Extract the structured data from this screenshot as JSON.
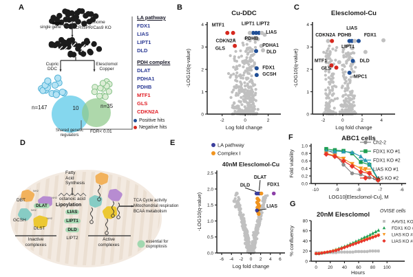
{
  "labels": {
    "A": "A",
    "B": "B",
    "C": "C",
    "D": "D",
    "E": "E",
    "F": "F",
    "G": "G"
  },
  "panelA": {
    "single_gene": "single gene",
    "crispr": [
      "Whole genome",
      "CRISPR/Cas9 KO"
    ],
    "arm_left": [
      "Cupric",
      "DDC"
    ],
    "arm_right": [
      "Elesclomol",
      "Copper"
    ],
    "venn_left": "n=147",
    "venn_overlap": "10",
    "venn_right": "n=35",
    "venn_caption": [
      "Shared genetic",
      "regulators"
    ],
    "fdr": "FDR< 0.01",
    "list": {
      "la_header": "LA pathway",
      "la": [
        "FDX1",
        "LIAS",
        "LIPT1",
        "DLD"
      ],
      "pdh_header": "PDH complex",
      "pdh_pos": [
        "DLAT",
        "PDHA1",
        "PDHB"
      ],
      "pdh_neg": [
        "MTF1",
        "GLS",
        "CDKN2A"
      ]
    },
    "hits": {
      "positive": "Positive hits",
      "negative": "Negative hits"
    }
  },
  "panelD": {
    "blobs_inactive": [
      "DBT",
      "DLAT",
      "GCSH",
      "DLST"
    ],
    "tag": "NH2",
    "inactive_caption": [
      "Inactive",
      "complexes"
    ],
    "fatty": [
      "Fatty",
      "Acid",
      "Synthesis"
    ],
    "octanoic": "octanoic acid",
    "lipoylation": "Lipoylation",
    "lip_genes": [
      "LIAS",
      "LIPT1",
      "DLD"
    ],
    "lip_other": "LIPT2",
    "active_caption": [
      "Active",
      "complexes"
    ],
    "outcomes": [
      "TCA Cycle activity",
      "Mitochondrial respiration",
      "BCAA metabolism"
    ],
    "essential": [
      "essential for",
      "cuproptosis"
    ]
  },
  "colors": {
    "pos": "#1f4e96",
    "neg": "#d6281e",
    "bg": "#c0c0c0",
    "la": "#3b3f9c",
    "cx1": "#f0941f",
    "fdx1_dot": "#8c3fa8",
    "gray": "#8e8e8e",
    "green": "#1d9e50",
    "teal": "#2a9ab5",
    "orange": "#f7941d",
    "red": "#e8342a",
    "aavs": "#bdbdbd"
  },
  "chart_data": [
    {
      "id": "cuddc",
      "type": "scatter",
      "title": "Cu-DDC",
      "xlabel": "Log fold change",
      "ylabel": "-LOG10(q-value)",
      "xlim": [
        -3.3,
        3.1
      ],
      "xticks": [
        -2,
        0,
        2
      ],
      "ylim": [
        0,
        4.12
      ],
      "yticks": [
        0,
        1,
        2,
        3,
        4
      ],
      "bg": {
        "seed": 7,
        "n": 360,
        "pow": 2.1,
        "ymax": 3.45,
        "lobes": [
          {
            "x": 0.45,
            "w": 0.42,
            "p": 0.62
          },
          {
            "x": -0.55,
            "w": 0.72,
            "p": 0.38
          }
        ]
      },
      "points": [
        {
          "x": -1.55,
          "y": 3.63,
          "c": "neg"
        },
        {
          "x": -1.05,
          "y": 3.63,
          "c": "neg"
        },
        {
          "x": -0.9,
          "y": 3.05,
          "c": "neg"
        },
        {
          "x": 0.7,
          "y": 3.63,
          "c": "pos"
        },
        {
          "x": 0.95,
          "y": 3.63,
          "c": "pos"
        },
        {
          "x": 1.2,
          "y": 3.63,
          "c": "pos"
        },
        {
          "x": 1.45,
          "y": 3.63,
          "c": "bg"
        },
        {
          "x": 0.4,
          "y": 3.63,
          "c": "bg"
        },
        {
          "x": 1.7,
          "y": 3.55,
          "c": "bg"
        },
        {
          "x": 0.85,
          "y": 3.4,
          "c": "bg"
        },
        {
          "x": 1.1,
          "y": 3.35,
          "c": "bg"
        },
        {
          "x": 1.4,
          "y": 3.05,
          "c": "bg"
        },
        {
          "x": 0.95,
          "y": 2.82,
          "c": "pos"
        },
        {
          "x": 1.55,
          "y": 2.85,
          "c": "bg"
        },
        {
          "x": 1.0,
          "y": 2.05,
          "c": "pos"
        },
        {
          "x": 1.0,
          "y": 1.75,
          "c": "pos"
        }
      ],
      "labels": [
        {
          "t": "MTF1",
          "x": -2.9,
          "y": 3.92
        },
        {
          "t": "CDKN2A",
          "x": -2.55,
          "y": 3.22
        },
        {
          "t": "GLS",
          "x": -2.6,
          "y": 2.88
        },
        {
          "t": "LIPT1",
          "x": 0.25,
          "y": 3.98,
          "a": "middle"
        },
        {
          "t": "LIPT2",
          "x": 1.55,
          "y": 3.98,
          "a": "middle"
        },
        {
          "t": "LIAS",
          "x": 1.8,
          "y": 3.6
        },
        {
          "t": "PDHB",
          "x": 0.55,
          "y": 3.32,
          "a": "middle"
        },
        {
          "t": "PDHA1",
          "x": 1.5,
          "y": 3.02
        },
        {
          "t": "DLD",
          "x": 1.85,
          "y": 2.72
        },
        {
          "t": "FDX1",
          "x": 1.5,
          "y": 2.02
        },
        {
          "t": "GCSH",
          "x": 1.5,
          "y": 1.72
        }
      ]
    },
    {
      "id": "elescu",
      "type": "scatter",
      "title": "Elesclomol-Cu",
      "xlabel": "Log fold change",
      "ylabel": "-LOG10(q-value)",
      "xlim": [
        -3.1,
        5.4
      ],
      "xticks": [
        -2,
        0,
        2,
        4
      ],
      "ylim": [
        0,
        4.12
      ],
      "yticks": [
        0,
        1,
        2,
        3,
        4
      ],
      "bg": {
        "seed": 11,
        "n": 320,
        "pow": 2.3,
        "ymax": 3.1,
        "lobes": [
          {
            "x": -1.3,
            "w": 0.55,
            "p": 0.42
          },
          {
            "x": 0.6,
            "w": 0.6,
            "p": 0.58
          }
        ]
      },
      "points": [
        {
          "x": -1.5,
          "y": 3.27,
          "c": "bg"
        },
        {
          "x": -1.1,
          "y": 3.27,
          "c": "neg"
        },
        {
          "x": 0.7,
          "y": 3.27,
          "c": "pos"
        },
        {
          "x": 0.95,
          "y": 3.27,
          "c": "pos"
        },
        {
          "x": 1.25,
          "y": 3.27,
          "c": "bg"
        },
        {
          "x": 1.65,
          "y": 3.27,
          "c": "pos"
        },
        {
          "x": 4.2,
          "y": 3.3,
          "c": "bg"
        },
        {
          "x": 1.0,
          "y": 2.95,
          "c": "bg"
        },
        {
          "x": 2.35,
          "y": 2.78,
          "c": "bg"
        },
        {
          "x": -1.45,
          "y": 2.62,
          "c": "bg"
        },
        {
          "x": 1.05,
          "y": 2.38,
          "c": "pos"
        },
        {
          "x": -0.35,
          "y": 2.32,
          "c": "bg"
        },
        {
          "x": -1.15,
          "y": 2.18,
          "c": "neg"
        },
        {
          "x": -0.65,
          "y": 2.08,
          "c": "neg"
        },
        {
          "x": 0.7,
          "y": 1.85,
          "c": "pos"
        }
      ],
      "labels": [
        {
          "t": "CDKN2A",
          "x": -2.8,
          "y": 3.48
        },
        {
          "t": "LIAS",
          "x": 0.95,
          "y": 3.78,
          "a": "middle"
        },
        {
          "t": "PDHB",
          "x": 0.2,
          "y": 3.48,
          "a": "middle"
        },
        {
          "t": "FDX1",
          "x": 2.2,
          "y": 3.48
        },
        {
          "t": "LIPT1",
          "x": 0.55,
          "y": 2.95,
          "a": "middle"
        },
        {
          "t": "MTF1",
          "x": -2.9,
          "y": 2.32
        },
        {
          "t": "GLS",
          "x": -2.2,
          "y": 1.98
        },
        {
          "t": "DLD",
          "x": 1.75,
          "y": 2.32
        },
        {
          "t": "MPC1",
          "x": 1.15,
          "y": 1.62
        }
      ]
    },
    {
      "id": "elescu40",
      "type": "scatter",
      "title": "40nM Elesclomol-Cu",
      "xlabel": "Log fold change",
      "ylabel": "-LOG10(q-value)",
      "xlim": [
        -7,
        7
      ],
      "xticks": [
        -6,
        -4,
        -2,
        0,
        2,
        4,
        6
      ],
      "ylim": [
        0,
        2.58
      ],
      "yticks": [
        0,
        0.5,
        1,
        1.5,
        2,
        2.5
      ],
      "yticklabels": [
        "0.0",
        "0.5",
        "1.0",
        "1.5",
        "2.0",
        "2.5"
      ],
      "legend": [
        {
          "t": "LA pathway",
          "c": "la"
        },
        {
          "t": "Complex I",
          "c": "cx1"
        }
      ],
      "bg": {
        "seed": 5,
        "n": 400,
        "pow": 1.7,
        "ymax": 1.82,
        "v": {
          "base": 0.12,
          "slope": 1.55,
          "sig": 0.4
        }
      },
      "points": [
        {
          "x": 1.15,
          "y": 1.86,
          "c": "la"
        },
        {
          "x": 1.45,
          "y": 1.86,
          "c": "la"
        },
        {
          "x": 1.75,
          "y": 1.86,
          "c": "la"
        },
        {
          "x": 2.15,
          "y": 1.86,
          "c": "cx1"
        },
        {
          "x": 4.7,
          "y": 1.86,
          "c": "fdx1_dot"
        },
        {
          "x": 1.35,
          "y": 1.7,
          "c": "cx1"
        },
        {
          "x": 1.6,
          "y": 1.65,
          "c": "cx1"
        },
        {
          "x": 1.3,
          "y": 1.58,
          "c": "cx1"
        },
        {
          "x": 1.55,
          "y": 1.52,
          "c": "cx1"
        },
        {
          "x": 1.7,
          "y": 1.47,
          "c": "cx1"
        },
        {
          "x": 1.35,
          "y": 1.42,
          "c": "cx1"
        },
        {
          "x": 1.55,
          "y": 1.36,
          "c": "cx1"
        },
        {
          "x": 1.45,
          "y": 1.28,
          "c": "cx1"
        },
        {
          "x": 1.6,
          "y": 1.22,
          "c": "cx1"
        },
        {
          "x": 1.25,
          "y": 1.33,
          "c": "la"
        },
        {
          "x": -2.9,
          "y": 1.86,
          "c": "bg"
        },
        {
          "x": -3.4,
          "y": 1.62,
          "c": "bg"
        },
        {
          "x": -2.6,
          "y": 1.55,
          "c": "bg"
        },
        {
          "x": -3.1,
          "y": 1.45,
          "c": "bg"
        },
        {
          "x": -2.2,
          "y": 1.38,
          "c": "bg"
        }
      ],
      "labels": [
        {
          "t": "DLD",
          "x": -1.2,
          "y": 2.08,
          "a": "middle",
          "line": [
            1.05,
            1.92
          ]
        },
        {
          "t": "DLAT",
          "x": 1.9,
          "y": 2.32,
          "a": "middle",
          "line": [
            1.7,
            1.95
          ]
        },
        {
          "t": "FDX1",
          "x": 4.6,
          "y": 2.1,
          "a": "middle"
        },
        {
          "t": "LIAS",
          "x": 3.2,
          "y": 1.42,
          "line": [
            1.45,
            1.33
          ]
        }
      ]
    },
    {
      "id": "abc1",
      "type": "line",
      "title": "ABC1 cells",
      "xlabel": "LOG10[Elesclomol-Cu], M",
      "ylabel": "Fold viability",
      "xlim": [
        -10.2,
        -5.8
      ],
      "xticks": [
        -10,
        -9,
        -8,
        -7,
        -6
      ],
      "ylim": [
        0,
        1.06
      ],
      "yticks": [
        0,
        0.2,
        0.4,
        0.6,
        0.8,
        1
      ],
      "yticklabels": [
        "0.0",
        "0.2",
        "0.4",
        "0.6",
        "0.8",
        "1.0"
      ],
      "x": [
        -9.5,
        -9.1,
        -8.7,
        -8.3,
        -7.9,
        -7.5,
        -7.1
      ],
      "series": [
        {
          "name": "Ch2-2",
          "color": "gray",
          "marker": "circle",
          "values": [
            0.9,
            0.79,
            0.5,
            0.27,
            0.24,
            0.16,
            0.1
          ]
        },
        {
          "name": "FDX1 KO #1",
          "color": "green",
          "marker": "square",
          "values": [
            0.92,
            0.89,
            0.87,
            0.8,
            0.57,
            0.5,
            0.1
          ]
        },
        {
          "name": "FDX1 KO #2",
          "color": "teal",
          "marker": "triangle",
          "values": [
            0.87,
            0.86,
            0.85,
            0.83,
            0.72,
            0.52,
            0.13
          ]
        },
        {
          "name": "LIAS KO #1",
          "color": "orange",
          "marker": "triangle-down",
          "values": [
            0.8,
            0.74,
            0.66,
            0.52,
            0.4,
            0.28,
            0.1
          ]
        },
        {
          "name": "LIAS KO #2",
          "color": "red",
          "marker": "diamond",
          "values": [
            0.78,
            0.72,
            0.6,
            0.46,
            0.31,
            0.27,
            0.09
          ]
        }
      ]
    },
    {
      "id": "ovise",
      "type": "line",
      "title": "20nM Elesclomol",
      "legend_header": "OVISE cells",
      "xlabel": "Hours",
      "ylabel": "% confluency",
      "xlim": [
        -7,
        125
      ],
      "xticks": [
        0,
        20,
        40,
        60,
        80,
        100
      ],
      "ylim": [
        0,
        80
      ],
      "yticks": [
        0,
        20,
        40,
        60,
        80
      ],
      "x": [
        0,
        4,
        8,
        12,
        16,
        20,
        24,
        28,
        32,
        36,
        40,
        44,
        48,
        52,
        56,
        60,
        64,
        68,
        72,
        76,
        80,
        84,
        88
      ],
      "series": [
        {
          "name": "AAVS1 KO",
          "color": "aavs",
          "marker": "square",
          "err": true,
          "values": [
            17,
            17,
            17,
            17,
            17,
            17,
            17,
            17,
            18,
            18,
            18,
            18,
            18,
            18,
            19,
            19,
            19,
            19,
            19,
            20,
            20,
            20,
            20
          ]
        },
        {
          "name": "FDX1 KO #2",
          "color": "green",
          "marker": "triangle",
          "err": true,
          "values": [
            15,
            15,
            16,
            17,
            18,
            19,
            21,
            23,
            25,
            27,
            29,
            31,
            34,
            36,
            39,
            41,
            44,
            47,
            49,
            52,
            55,
            58,
            61
          ]
        },
        {
          "name": "LIAS KO #1",
          "color": "orange",
          "marker": "triangle-down",
          "values": [
            15,
            15,
            16,
            17,
            18,
            19,
            20,
            22,
            23,
            25,
            27,
            29,
            31,
            33,
            35,
            38,
            40,
            42,
            44,
            46,
            48,
            50,
            52
          ]
        },
        {
          "name": "LIAS KO #2",
          "color": "red",
          "marker": "diamond",
          "err": true,
          "values": [
            15,
            15,
            16,
            17,
            18,
            19,
            20,
            21,
            23,
            25,
            27,
            29,
            31,
            33,
            35,
            37,
            39,
            41,
            43,
            45,
            47,
            49,
            51
          ]
        }
      ]
    }
  ]
}
